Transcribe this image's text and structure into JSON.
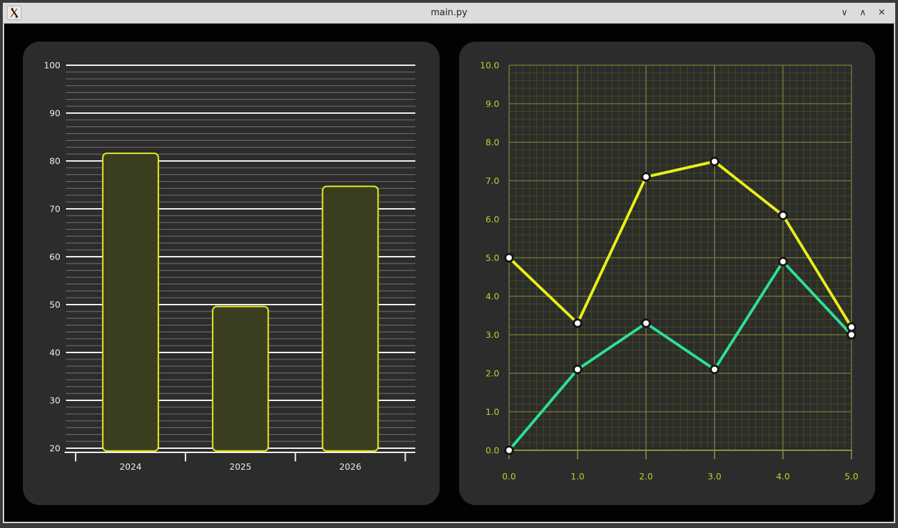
{
  "window": {
    "title": "main.py",
    "app_icon": "x11-logo-icon",
    "controls": [
      {
        "name": "minimize-button",
        "glyph": "∨"
      },
      {
        "name": "maximize-button",
        "glyph": "∧"
      },
      {
        "name": "close-button",
        "glyph": "✕"
      }
    ]
  },
  "chart_data": [
    {
      "type": "bar",
      "panel": "left",
      "title": "",
      "categories": [
        "2024",
        "2025",
        "2026"
      ],
      "values": [
        81.6,
        49.6,
        74.7
      ],
      "ylim": [
        20,
        100
      ],
      "ytick_labels": [
        "20",
        "30",
        "40",
        "50",
        "60",
        "70",
        "80",
        "90",
        "100"
      ],
      "grid": "horizontal major + minor, no legend",
      "colors": {
        "bar_fill": "#3a3e21",
        "bar_edge": "#dce222",
        "major_grid": "#f2f2f2",
        "minor_grid": "#8c8c8c",
        "axis": "#f2f2f2",
        "tick_label": "#ececec"
      }
    },
    {
      "type": "line",
      "panel": "right",
      "title": "",
      "x": [
        0,
        1,
        2,
        3,
        4,
        5
      ],
      "xtick_labels": [
        "0.0",
        "1.0",
        "2.0",
        "3.0",
        "4.0",
        "5.0"
      ],
      "ytick_labels": [
        "0.0",
        "1.0",
        "2.0",
        "3.0",
        "4.0",
        "5.0",
        "6.0",
        "7.0",
        "8.0",
        "9.0",
        "10.0"
      ],
      "xlim": [
        0,
        5
      ],
      "ylim": [
        0,
        10
      ],
      "series": [
        {
          "name": "yellow-line",
          "color": "#e9ee1b",
          "values": [
            5.0,
            3.3,
            7.1,
            7.5,
            6.1,
            3.2
          ]
        },
        {
          "name": "green-line",
          "color": "#2ce095",
          "values": [
            0.0,
            2.1,
            3.3,
            2.1,
            4.9,
            3.0
          ]
        }
      ],
      "marker": {
        "shape": "circle",
        "fill": "#ffffff",
        "edge": "#161616"
      },
      "grid": "both axes major + minor, no legend",
      "colors": {
        "major_grid": "#6e7433",
        "minor_grid": "#45491f",
        "axis": "#8a9040",
        "tick_label": "#c4cd2d"
      }
    }
  ]
}
